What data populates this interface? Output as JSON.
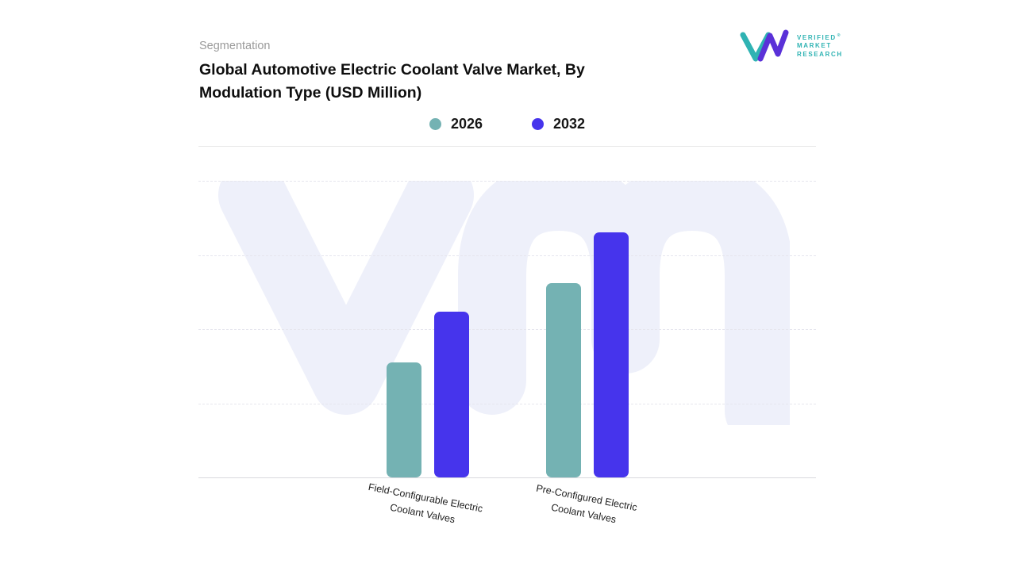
{
  "header": {
    "eyebrow": "Segmentation",
    "title_line1": "Global Automotive Electric Coolant Valve Market, By",
    "title_line2": "Modulation Type (USD Million)"
  },
  "logo": {
    "lines": [
      "VERIFIED",
      "MARKET",
      "RESEARCH"
    ],
    "registered_mark": "®",
    "teal": "#2fb3b3",
    "purple": "#5a31d8"
  },
  "colors": {
    "series_2026": "#74b2b3",
    "series_2032": "#4634ec",
    "watermark": "#eef0fa",
    "gridline": "#e6e6ee",
    "baseline": "#d9d9de"
  },
  "chart_data": {
    "type": "bar",
    "title": "Global Automotive Electric Coolant Valve Market, By Modulation Type (USD Million)",
    "categories": [
      "Field-Configurable Electric Coolant Valves",
      "Pre-Configured Electric Coolant Valves"
    ],
    "series": [
      {
        "name": "2026",
        "color": "#74b2b3",
        "values": [
          38.7,
          65.6
        ]
      },
      {
        "name": "2032",
        "color": "#4634ec",
        "values": [
          56,
          82.7
        ]
      }
    ],
    "xlabel": "",
    "ylabel": "",
    "ylim": [
      0,
      100
    ],
    "value_scale_note": "no numeric axis labels shown; values estimated relative to gridlines",
    "grid": "horizontal-dashed",
    "legend_position": "top-center"
  }
}
